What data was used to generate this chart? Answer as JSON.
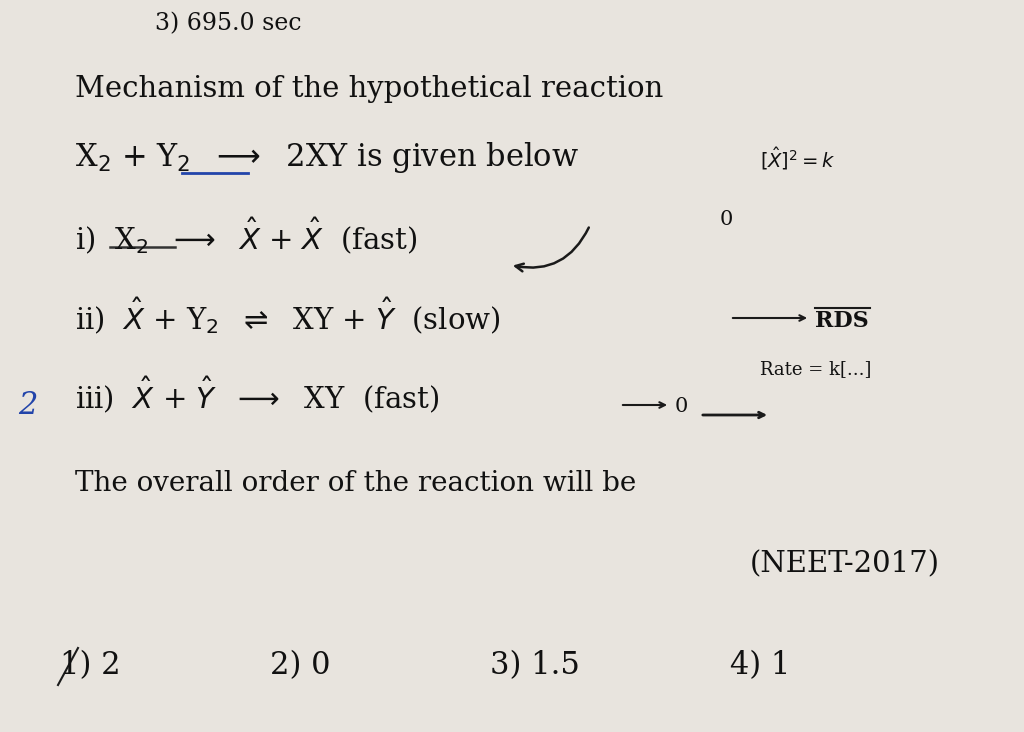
{
  "bg_color": "#e8e4de",
  "text_color": "#111111",
  "top_text": "3) 695.0 sec",
  "title": "Mechanism of the hypothetical reaction",
  "reaction": "X\\u2082 + Y\\u2082 \\u27f6 2XY is given below",
  "step_i": "i)  X\\u2082 \\u27f6 X + X  (fast)",
  "step_ii": "ii) X + Y\\u2082 \\u21cc XY + Y  (slow)",
  "step_iii": "iii) X + Y \\u27f6 XY  (fast)",
  "footer1": "The overall order of the reaction will be",
  "neet": "(NEET-2017)",
  "opt1": "1) 2",
  "opt2": "2) 0",
  "opt3": "3) 1.5",
  "opt4": "4) 1",
  "font_body": 20,
  "font_title": 21,
  "font_reaction": 22,
  "font_steps": 21,
  "font_footer": 20,
  "font_opts": 22,
  "font_neet": 21
}
